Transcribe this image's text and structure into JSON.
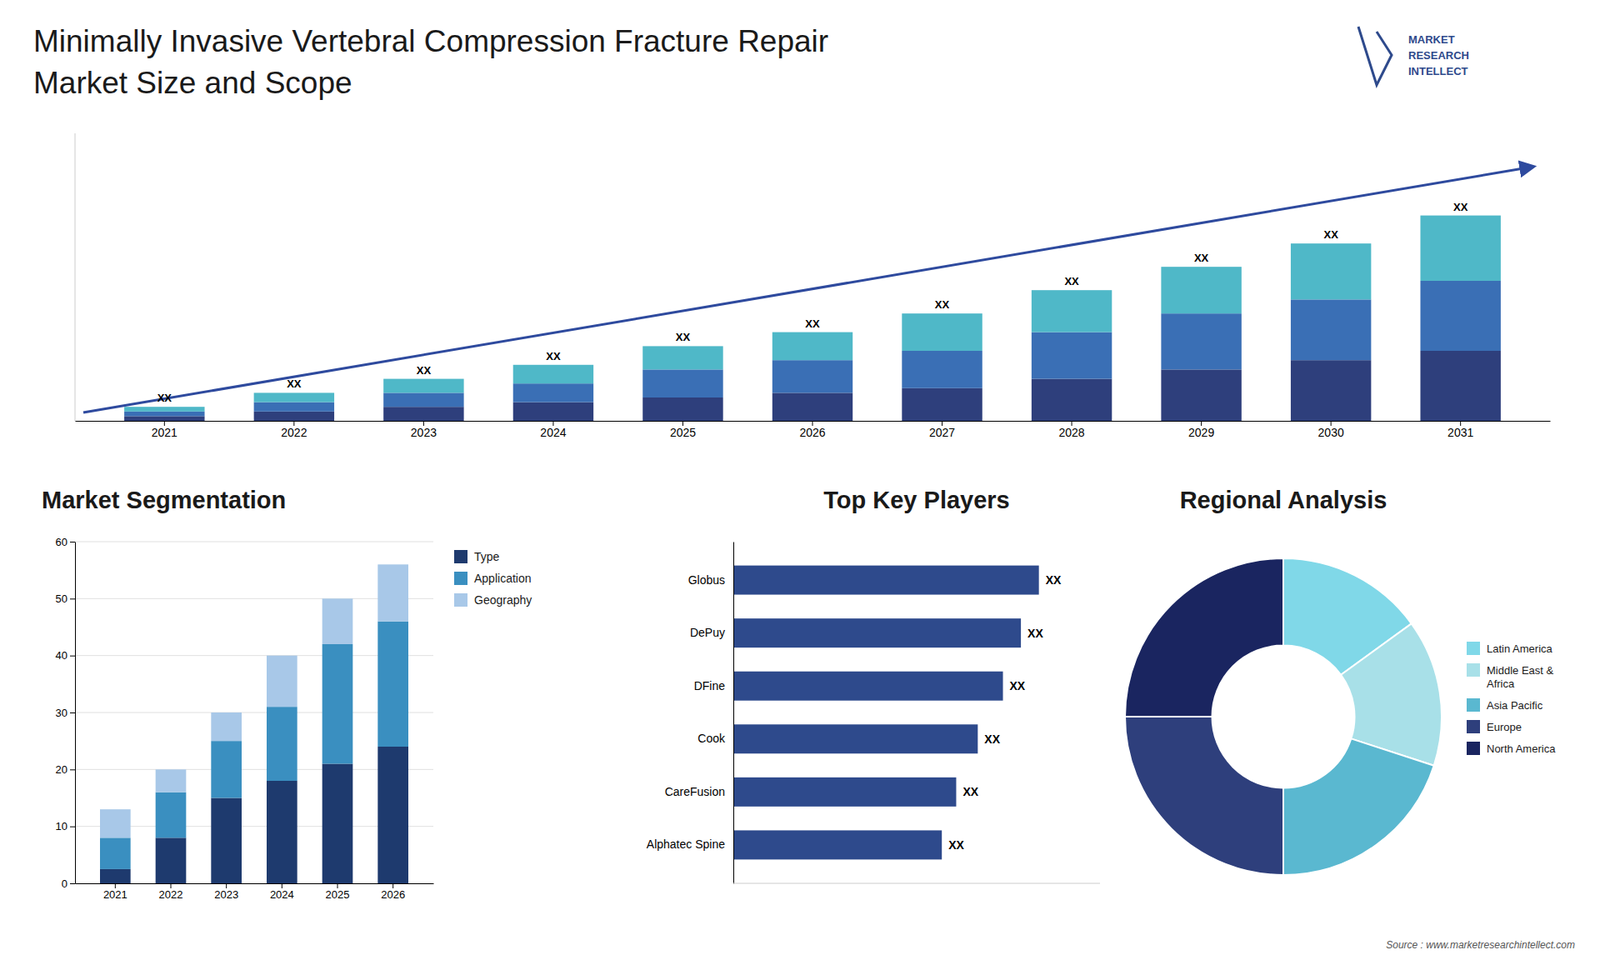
{
  "chart_data": [
    {
      "type": "bar",
      "title": "Minimally Invasive Vertebral Compression Fracture Repair",
      "subtitle": "Market Size and Scope",
      "stacked": true,
      "categories": [
        "2021",
        "2022",
        "2023",
        "2024",
        "2025",
        "2026",
        "2027",
        "2028",
        "2029",
        "2030",
        "2031"
      ],
      "series": [
        {
          "color": "#2e3f7c",
          "values": [
            1,
            2,
            3,
            4,
            5,
            6,
            7,
            9,
            11,
            13,
            15
          ]
        },
        {
          "color": "#3a6fb5",
          "values": [
            1,
            2,
            3,
            4,
            6,
            7,
            8,
            10,
            12,
            13,
            15
          ]
        },
        {
          "color": "#4fb8c8",
          "values": [
            1,
            2,
            3,
            4,
            5,
            6,
            8,
            9,
            10,
            12,
            14
          ],
          "value_labels": [
            "XX",
            "XX",
            "XX",
            "XX",
            "XX",
            "XX",
            "XX",
            "XX",
            "XX",
            "XX",
            "XX"
          ]
        }
      ],
      "ylim": [
        0,
        61.6
      ],
      "data_labels": true,
      "tick_labels": "x",
      "grid": false,
      "annotations": [
        "MARKET\nRESEARCH\nINTELLECT",
        "Source : www.marketresearchintellect.com"
      ]
    },
    {
      "type": "bar",
      "title": "Market Segmentation",
      "stacked": true,
      "categories": [
        "2021",
        "2022",
        "2023",
        "2024",
        "2025",
        "2026"
      ],
      "series": [
        {
          "name": "Type",
          "color": "#1e3a6e",
          "values": [
            2.5,
            8,
            15,
            18,
            21,
            24
          ]
        },
        {
          "name": "Application",
          "color": "#3a8fc0",
          "values": [
            5.5,
            8,
            10,
            13,
            21,
            22
          ]
        },
        {
          "name": "Geography",
          "color": "#a8c8e8",
          "values": [
            5,
            4,
            5,
            9,
            8,
            10
          ]
        }
      ],
      "ylim": [
        0,
        60
      ],
      "yticks": [
        0,
        10,
        20,
        30,
        40,
        50,
        60
      ],
      "grid": true,
      "legend": "right"
    },
    {
      "type": "bar",
      "title": "Top Key Players",
      "orientation": "horizontal",
      "categories": [
        "Globus",
        "DePuy",
        "DFine",
        "Cook",
        "CareFusion",
        "Alphatec Spine"
      ],
      "values": [
        85,
        80,
        75,
        68,
        62,
        58
      ],
      "value_labels": [
        "XX",
        "XX",
        "XX",
        "XX",
        "XX",
        "XX"
      ],
      "color": "#2e4a8c",
      "xlim": [
        0,
        102
      ],
      "data_labels": true,
      "tick_labels": "y",
      "grid": false
    },
    {
      "type": "pie",
      "title": "Regional Analysis",
      "categories": [
        "Latin America",
        "Middle East &\nAfrica",
        "Asia Pacific",
        "Europe",
        "North America"
      ],
      "values": [
        15,
        15,
        20,
        25,
        25
      ],
      "colors": [
        "#80d8e8",
        "#a8e0e8",
        "#5ab8d0",
        "#2e3f7c",
        "#1a2560"
      ],
      "legend": "right"
    }
  ]
}
